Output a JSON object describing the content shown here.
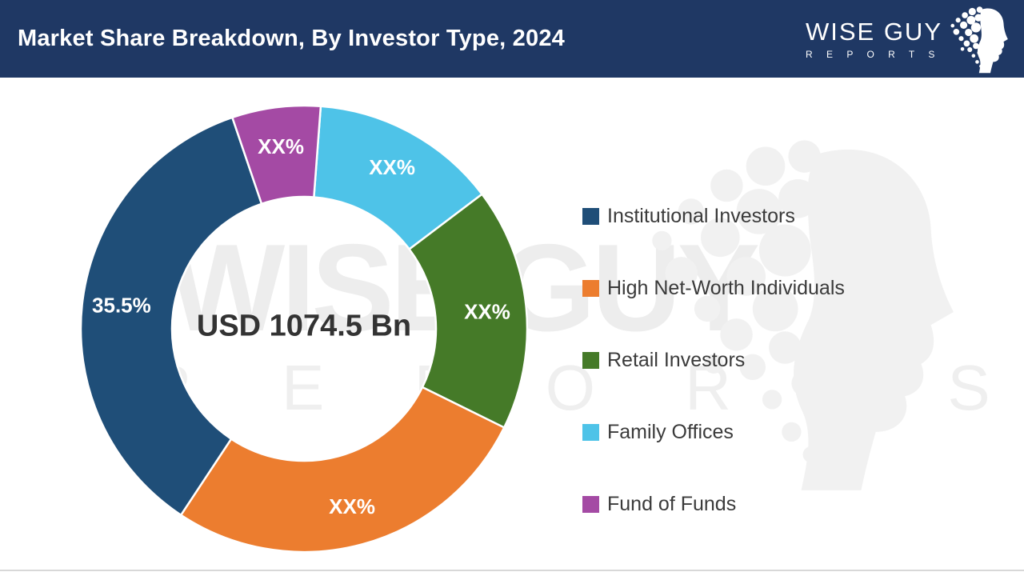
{
  "header": {
    "title": "Market Share Breakdown, By Investor Type, 2024",
    "bg_color": "#1f3864",
    "logo": {
      "line1": "WISE GUY",
      "line2": "R E P O R T S"
    }
  },
  "watermark": {
    "line1": "WISE GUY",
    "line2": "R E P O R T S"
  },
  "chart_data": {
    "type": "pie",
    "subtype": "donut",
    "title": "Market Share Breakdown, By Investor Type, 2024",
    "center_label": "USD 1074.5 Bn",
    "legend_position": "right",
    "slices": [
      {
        "id": "institutional",
        "label": "Institutional Investors",
        "display_value": "35.5%",
        "pct_est": 35.5,
        "color": "#1f4e78"
      },
      {
        "id": "hnw",
        "label": "High Net-Worth Individuals",
        "display_value": "XX%",
        "pct_est": 27.0,
        "color": "#ec7d2f"
      },
      {
        "id": "retail",
        "label": "Retail Investors",
        "display_value": "XX%",
        "pct_est": 17.6,
        "color": "#457a28"
      },
      {
        "id": "family",
        "label": "Family Offices",
        "display_value": "XX%",
        "pct_est": 13.5,
        "color": "#4ec3e8"
      },
      {
        "id": "fund_of_funds",
        "label": "Fund of Funds",
        "display_value": "XX%",
        "pct_est": 6.4,
        "color": "#a44aa4"
      }
    ],
    "geometry": {
      "start_angle_deg": 85.7,
      "render_order_clockwise": [
        "family",
        "retail",
        "hnw",
        "institutional",
        "fund_of_funds"
      ],
      "outer_radius": 279,
      "inner_radius": 165,
      "label_radius": 230,
      "separator_color": "#ffffff",
      "slice_label_color": "#ffffff"
    }
  }
}
